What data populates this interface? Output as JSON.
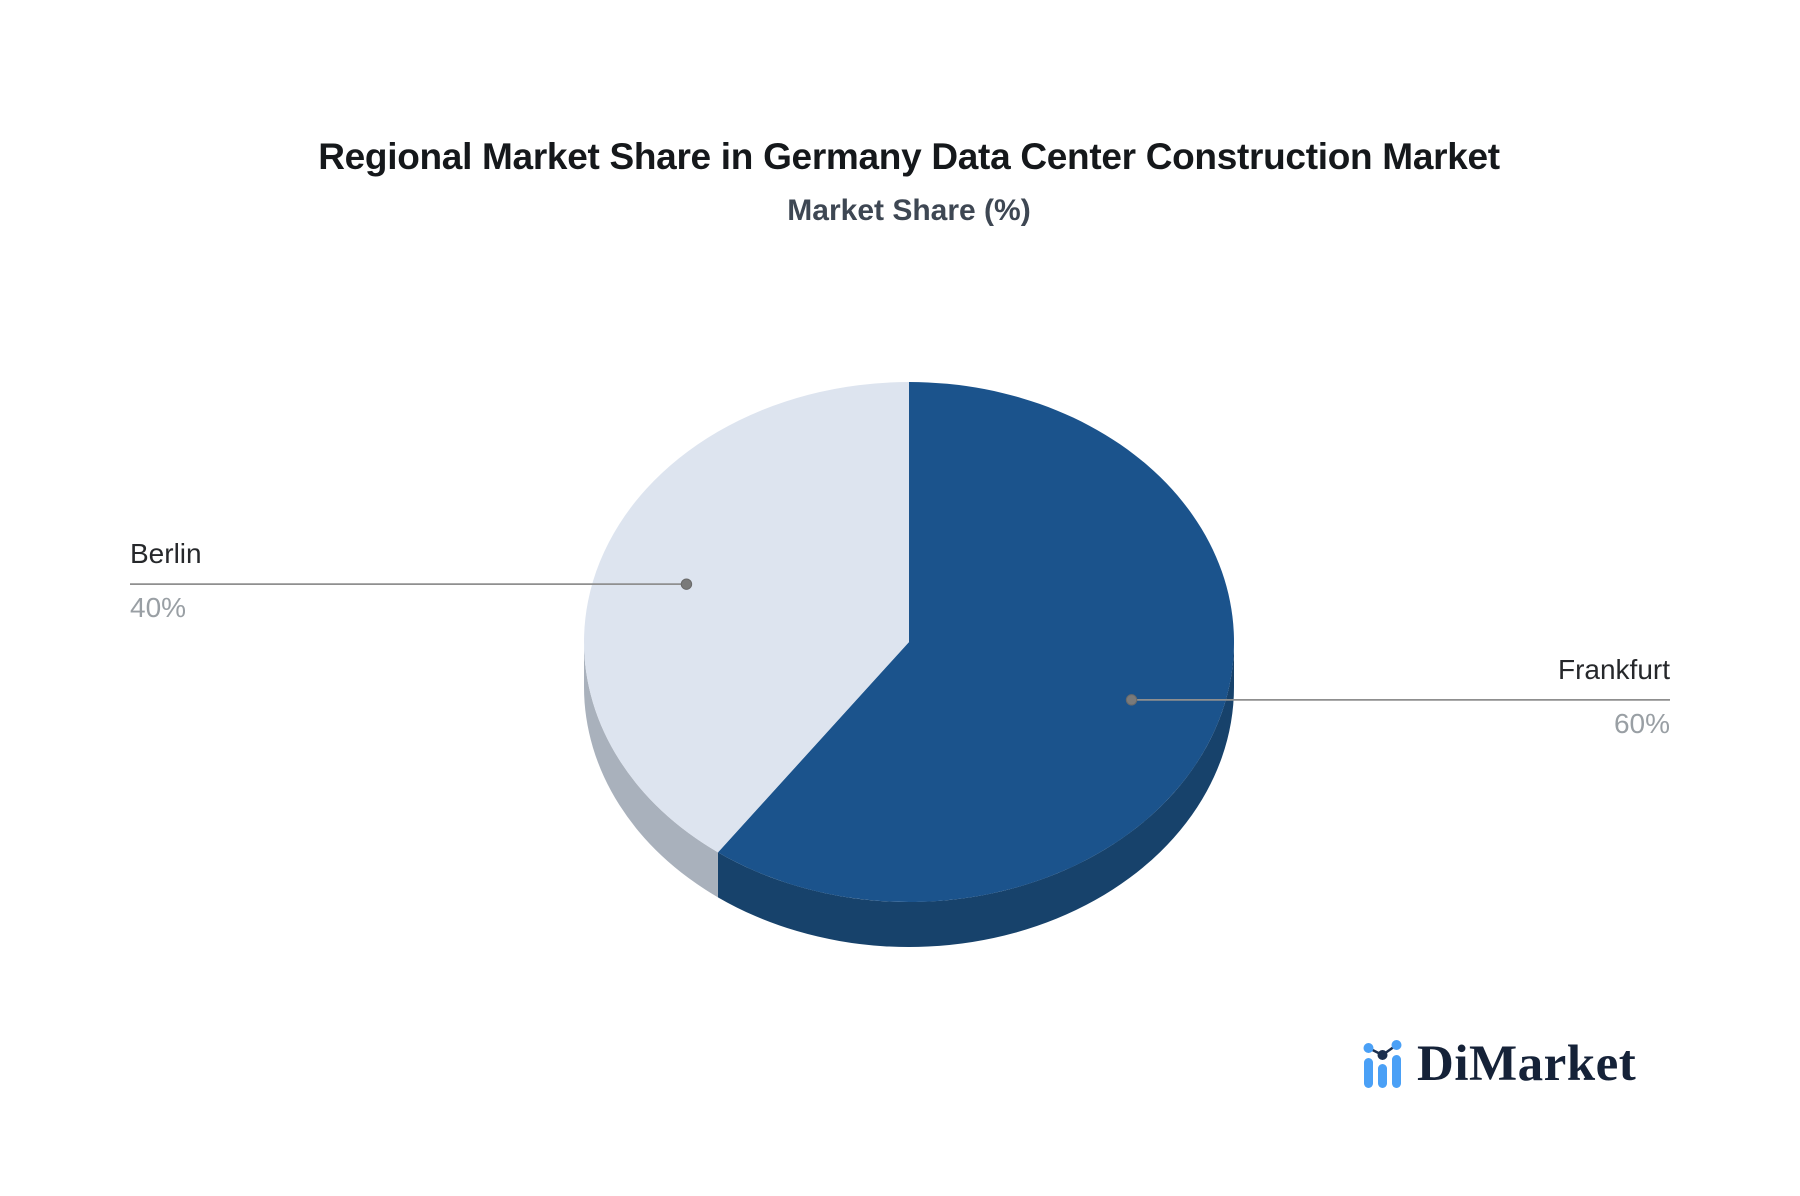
{
  "chart_data": {
    "type": "pie",
    "title": "Regional Market Share in Germany Data Center Construction Market",
    "subtitle": "Market Share (%)",
    "unit": "%",
    "style_3d": true,
    "start_angle": "12-o-clock, clockwise",
    "legend_position": "none",
    "slices": [
      {
        "name": "Frankfurt",
        "value": 60,
        "pct_label": "60%",
        "color": "#1B538C",
        "side_color": "#17426B",
        "label_side": "right"
      },
      {
        "name": "Berlin",
        "value": 40,
        "pct_label": "40%",
        "color": "#DDE4EF",
        "side_color": "#A9B1BC",
        "label_side": "left"
      }
    ],
    "label_colors": {
      "name": "#26282B",
      "percent": "#999FA4",
      "leader_line": "#8F8F8F",
      "leader_dot": "#7A7A7A"
    }
  },
  "logo": {
    "text": "DiMarket",
    "icon": "bar-line-chart-icon",
    "bar_color": "#4AA0F6",
    "accent_dark": "#1B2F4E",
    "text_color": "#152238"
  }
}
